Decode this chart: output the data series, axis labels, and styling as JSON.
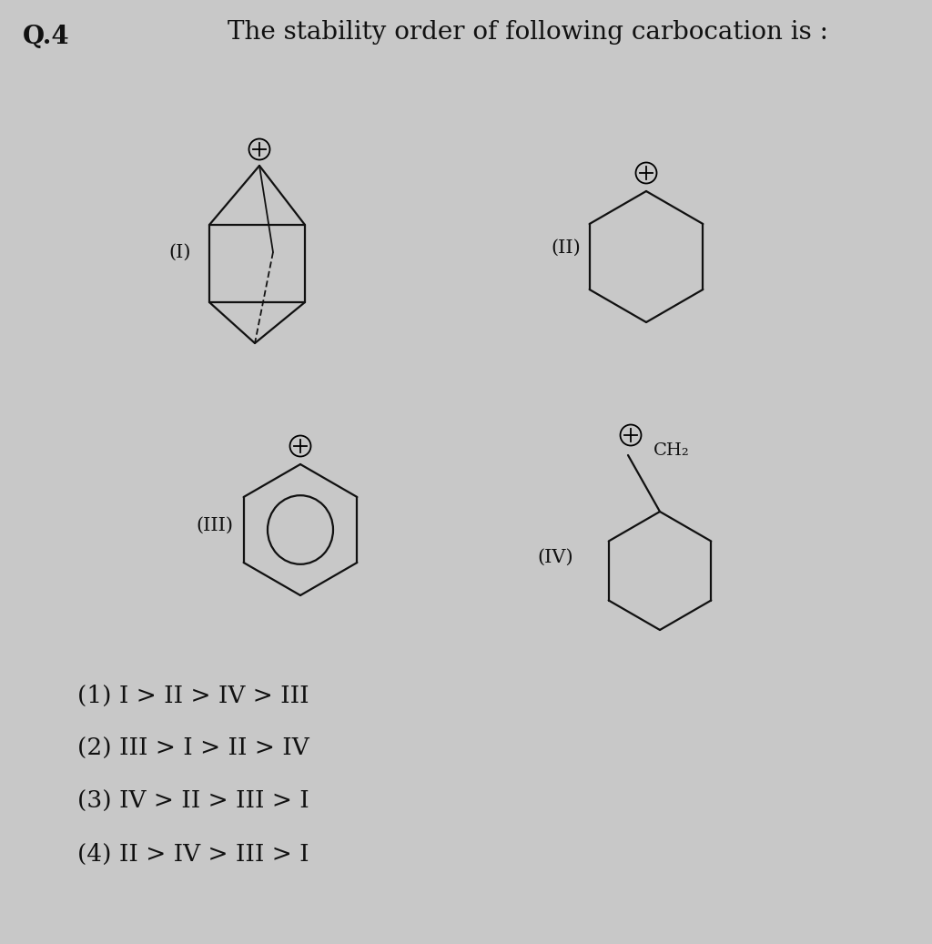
{
  "title": "The stability order of following carbocation is :",
  "question_label": "Q.4",
  "background_color": "#c8c8c8",
  "text_color": "#111111",
  "options": [
    "(1) I > II > IV > III",
    "(2) III > I > II > IV",
    "(3) IV > II > III > I",
    "(4) II > IV > III > I"
  ],
  "structure_labels": [
    "(I)",
    "(II)",
    "(III)",
    "(IV)"
  ],
  "plus_symbol": "⊕"
}
